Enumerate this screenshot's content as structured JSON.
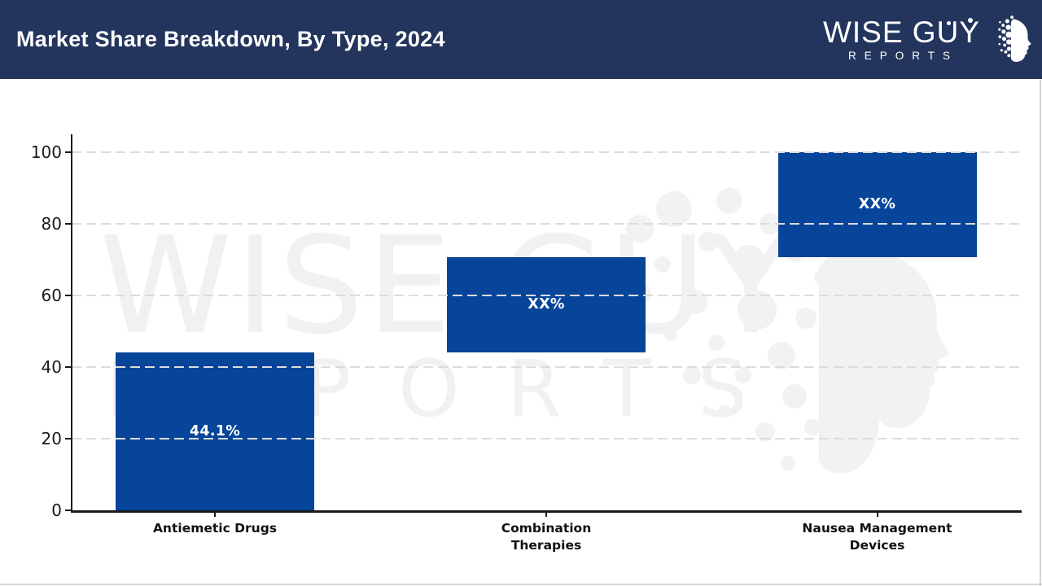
{
  "header": {
    "title": "Market Share Breakdown, By Type, 2024",
    "logo": {
      "line1": "WISE GUY",
      "line2": "REPORTS"
    },
    "bg_color": "#24355d"
  },
  "watermark": {
    "line1": "WISE GUY",
    "line2": "REPORTS"
  },
  "chart_data": {
    "type": "bar",
    "subtype": "waterfall",
    "title": "Market Share Breakdown, By Type, 2024",
    "categories": [
      "Antiemetic Drugs",
      "Combination\nTherapies",
      "Nausea Management\nDevices"
    ],
    "bars": [
      {
        "label": "44.1%",
        "start": 0,
        "end": 44.1
      },
      {
        "label": "XX%",
        "start": 44.1,
        "end": 70.7
      },
      {
        "label": "XX%",
        "start": 70.7,
        "end": 100
      }
    ],
    "values_displayed": [
      "44.1%",
      "XX%",
      "XX%"
    ],
    "yticks": [
      0,
      20,
      40,
      60,
      80,
      100
    ],
    "ylim": [
      0,
      105
    ],
    "ylabel": "",
    "xlabel": "",
    "grid": true,
    "legend": false,
    "bar_color": "#06459a",
    "grid_color": "#dcdcdc",
    "bar_label_color": "#ffffff",
    "axis_color": "#1a1a1a"
  }
}
